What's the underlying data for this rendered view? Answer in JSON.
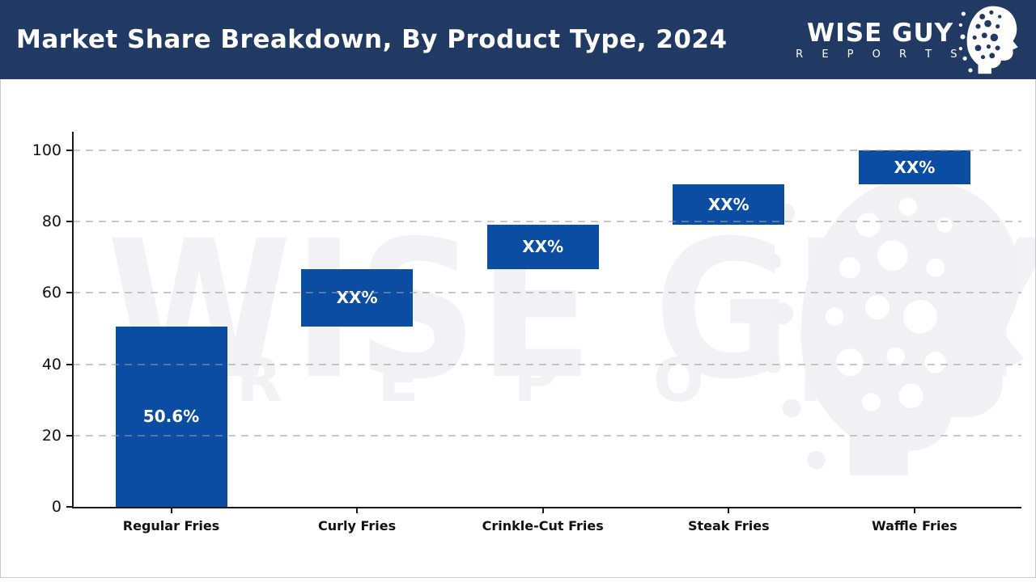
{
  "header": {
    "title": "Market Share Breakdown, By Product Type, 2024",
    "background": "#213a64",
    "logo": {
      "line1": "WISE GUY",
      "line2": "R E P O R T S",
      "icon": "dotted-head-icon"
    }
  },
  "watermark": {
    "line1": "WISE GUY",
    "line2": "R E P O R T S"
  },
  "chart_data": {
    "type": "bar",
    "subtype": "waterfall",
    "title": "Market Share Breakdown, By Product Type, 2024",
    "categories": [
      "Regular Fries",
      "Curly Fries",
      "Crinkle-Cut Fries",
      "Steak Fries",
      "Waffle Fries"
    ],
    "segments": [
      {
        "category": "Regular Fries",
        "start": 0,
        "end": 50.6,
        "label": "50.6%"
      },
      {
        "category": "Curly Fries",
        "start": 50.6,
        "end": 66.7,
        "label": "XX%"
      },
      {
        "category": "Crinkle-Cut Fries",
        "start": 66.7,
        "end": 79.2,
        "label": "XX%"
      },
      {
        "category": "Steak Fries",
        "start": 79.2,
        "end": 90.5,
        "label": "XX%"
      },
      {
        "category": "Waffle Fries",
        "start": 90.5,
        "end": 100,
        "label": "XX%"
      }
    ],
    "xlabel": "",
    "ylabel": "",
    "ylim": [
      0,
      100
    ],
    "yticks": [
      0,
      20,
      40,
      60,
      80,
      100
    ],
    "grid": "horizontal-dashed",
    "legend": "none",
    "bar_color": "#0b4da2",
    "bar_label_color": "#ffffff",
    "axis_color": "#1a1a1a",
    "gridline_color": "#9e9e9e"
  }
}
